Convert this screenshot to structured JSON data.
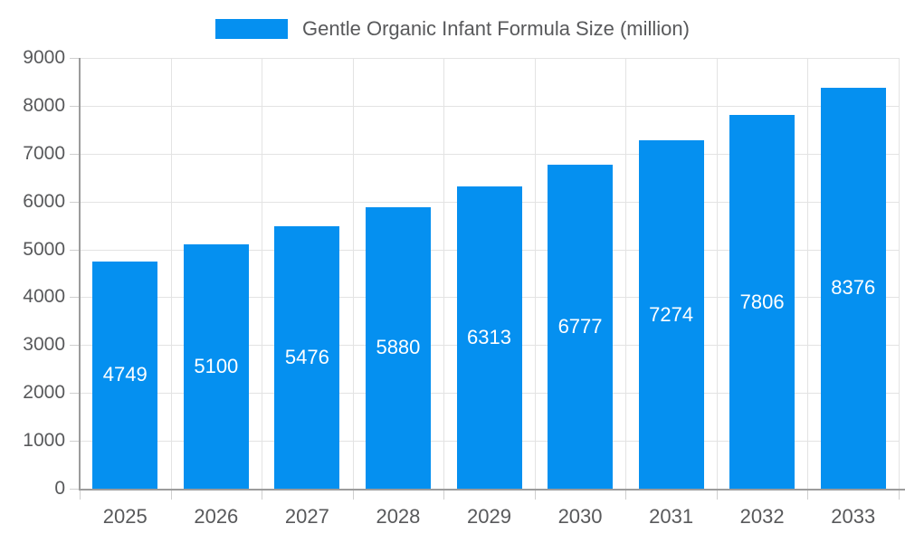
{
  "chart_data": {
    "type": "bar",
    "title": "Gentle Organic Infant Formula Size (million)",
    "categories": [
      "2025",
      "2026",
      "2027",
      "2028",
      "2029",
      "2030",
      "2031",
      "2032",
      "2033"
    ],
    "values": [
      4749,
      5100,
      5476,
      5880,
      6313,
      6777,
      7274,
      7806,
      8376
    ],
    "xlabel": "",
    "ylabel": "",
    "ylim": [
      0,
      9000
    ],
    "ytick_step": 1000,
    "ytick_labels": [
      "0",
      "1000",
      "2000",
      "3000",
      "4000",
      "5000",
      "6000",
      "7000",
      "8000",
      "9000"
    ],
    "grid": true,
    "legend_position": "top",
    "bar_labels_shown": true
  },
  "legend": {
    "label": "Gentle Organic Infant Formula Size (million)"
  },
  "colors": {
    "bar": "#0590F0",
    "grid": "#E3E3E3",
    "axis": "#9C9C9C",
    "tick": "#CFCFCF",
    "text": "#58595B",
    "bar_label": "#FFFFFF",
    "background": "#FFFFFF"
  }
}
